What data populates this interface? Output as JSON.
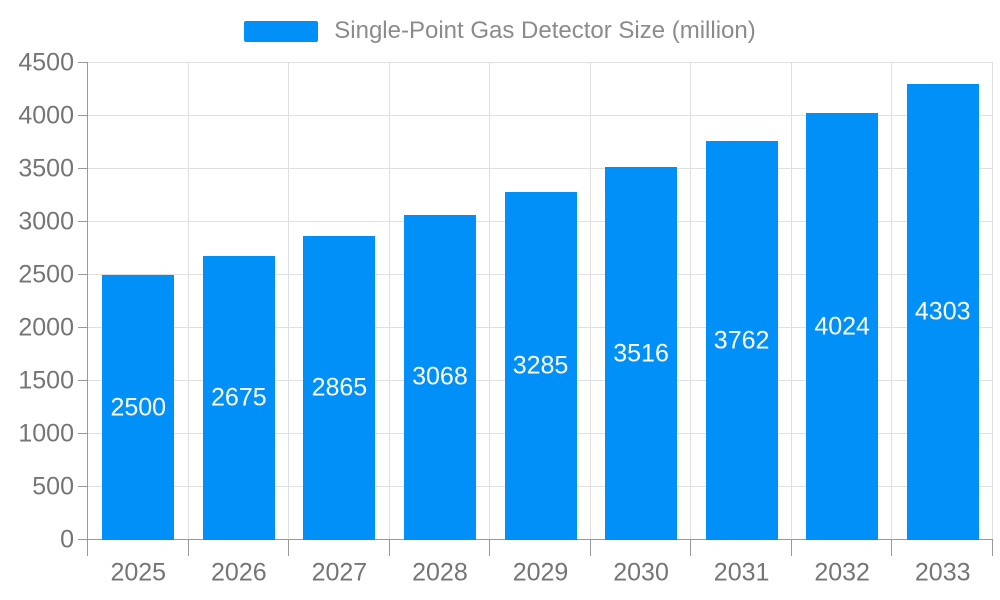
{
  "legend": {
    "label": "Single-Point Gas Detector Size (million)",
    "swatch_color": "#0090F8"
  },
  "chart_data": {
    "type": "bar",
    "title": "Single-Point Gas Detector Size (million)",
    "categories": [
      "2025",
      "2026",
      "2027",
      "2028",
      "2029",
      "2030",
      "2031",
      "2032",
      "2033"
    ],
    "values": [
      2500,
      2675,
      2865,
      3068,
      3285,
      3516,
      3762,
      4024,
      4303
    ],
    "xlabel": "",
    "ylabel": "",
    "ylim": [
      0,
      4500
    ],
    "ytick_step": 500,
    "yticks": [
      0,
      500,
      1000,
      1500,
      2000,
      2500,
      3000,
      3500,
      4000,
      4500
    ],
    "grid": true,
    "legend_position": "top-center",
    "value_labels_position": "inside-center",
    "colors": {
      "bar": "#0090F8",
      "value_label": "#FFFFFF",
      "axis_label": "#757575",
      "legend_text": "#8B8B8B",
      "grid_line": "#E0E0E0",
      "axis_line": "#999999"
    }
  }
}
